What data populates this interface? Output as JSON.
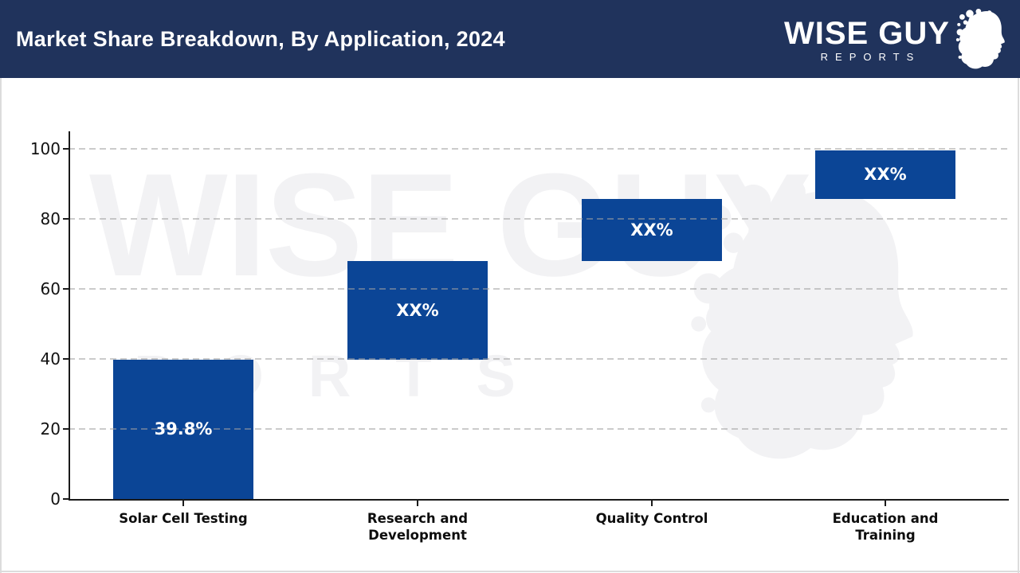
{
  "header": {
    "title": "Market Share Breakdown, By Application, 2024",
    "logo": {
      "line1": "WISE GUY",
      "line2": "REPORTS"
    }
  },
  "watermark": {
    "line1": "WISE GUY",
    "line2": "PORTS"
  },
  "chart_data": {
    "type": "bar",
    "subtype": "waterfall",
    "title": "Market Share Breakdown, By Application, 2024",
    "categories": [
      "Solar Cell Testing",
      "Research and Development",
      "Quality Control",
      "Education and Training"
    ],
    "segments": [
      {
        "category": "Solar Cell Testing",
        "start": 0,
        "end": 39.8,
        "label": "39.8%"
      },
      {
        "category": "Research and Development",
        "start": 39.8,
        "end": 68.0,
        "label": "XX%"
      },
      {
        "category": "Quality Control",
        "start": 68.0,
        "end": 85.7,
        "label": "XX%"
      },
      {
        "category": "Education and Training",
        "start": 85.7,
        "end": 99.6,
        "label": "XX%"
      }
    ],
    "xlabel": "",
    "ylabel": "",
    "ylim": [
      0,
      100
    ],
    "yticks": [
      0,
      20,
      40,
      60,
      80,
      100
    ],
    "grid": "horizontal-dashed",
    "legend": "none",
    "colors": {
      "bar": "#0b4596",
      "bar_label": "#ffffff",
      "header": "#20335c",
      "axis": "#1a1a1a",
      "watermark": "#f2f2f4"
    }
  }
}
